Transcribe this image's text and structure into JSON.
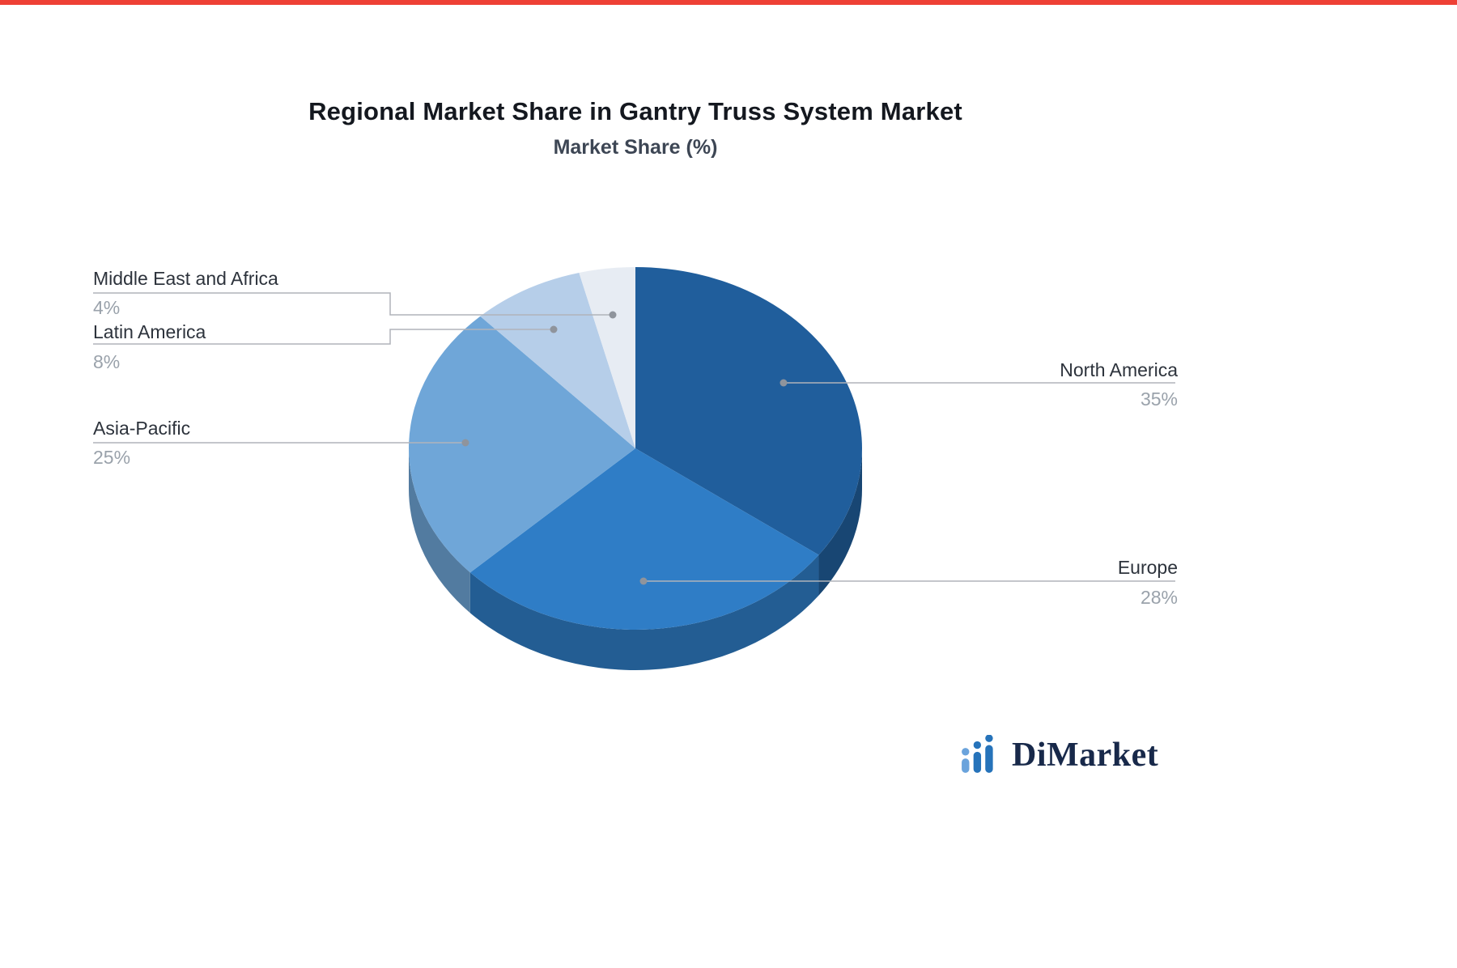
{
  "page": {
    "top_bar_color": "#ee4035",
    "background_color": "#ffffff"
  },
  "chart": {
    "title": "Regional Market Share in Gantry Truss System Market",
    "subtitle": "Market Share (%)"
  },
  "chart_data": {
    "type": "pie",
    "style": "3d",
    "title": "Regional Market Share in Gantry Truss System Market",
    "subtitle": "Market Share (%)",
    "unit": "%",
    "labels": [
      "North America",
      "Europe",
      "Asia-Pacific",
      "Latin America",
      "Middle East and Africa"
    ],
    "values": [
      35,
      28,
      25,
      8,
      4
    ],
    "colors": [
      "#205e9c",
      "#2f7dc6",
      "#6fa6d8",
      "#b6cee9",
      "#e7ecf3"
    ],
    "start_angle_deg": -90,
    "direction": "clockwise",
    "legend": "leader-line-labels"
  },
  "labels": {
    "north_america": {
      "name": "North America",
      "pct": "35%"
    },
    "europe": {
      "name": "Europe",
      "pct": "28%"
    },
    "asia_pacific": {
      "name": "Asia-Pacific",
      "pct": "25%"
    },
    "latin_america": {
      "name": "Latin America",
      "pct": "8%"
    },
    "middle_east_africa": {
      "name": "Middle East and Africa",
      "pct": "4%"
    }
  },
  "logo": {
    "text": "DiMarket",
    "icon": "bar-chart-icon",
    "text_color": "#18294a",
    "icon_color_dark": "#2673ba",
    "icon_color_light": "#6aa3dc"
  }
}
